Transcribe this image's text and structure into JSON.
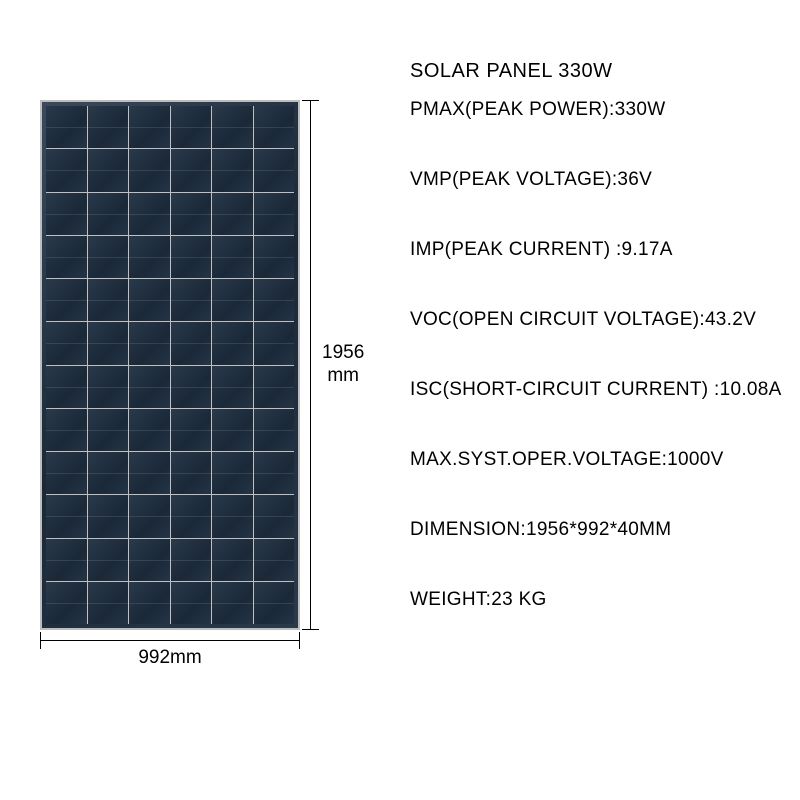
{
  "product": {
    "title": "SOLAR PANEL 330W",
    "specs": [
      "PMAX(PEAK POWER):330W",
      "VMP(PEAK VOLTAGE):36V",
      "IMP(PEAK CURRENT) :9.17A",
      "VOC(OPEN CIRCUIT VOLTAGE):43.2V",
      "ISC(SHORT-CIRCUIT CURRENT) :10.08A",
      "MAX.SYST.OPER.VOLTAGE:1000V",
      "DIMENSION:1956*992*40MM",
      "WEIGHT:23 KG"
    ]
  },
  "diagram": {
    "height_label": "1956\nmm",
    "width_label": "992mm",
    "panel_cols": 6,
    "panel_rows": 12,
    "frame_color": "#bdbdbd",
    "cell_color_light": "#2a3a4a",
    "cell_color_dark": "#1a2838",
    "background": "#ffffff",
    "text_color": "#000000",
    "font_size_pt": 15
  }
}
